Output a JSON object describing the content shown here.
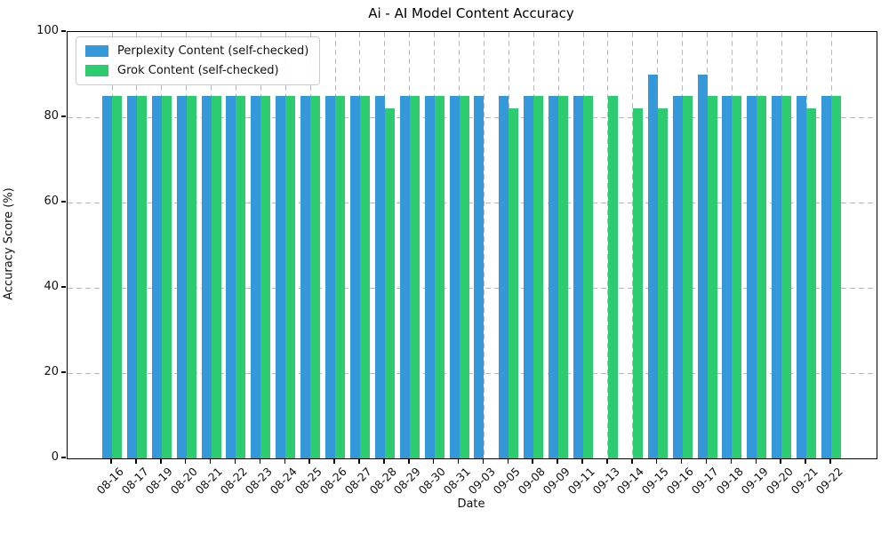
{
  "chart_data": {
    "type": "bar",
    "title": "Ai - AI Model Content Accuracy",
    "xlabel": "Date",
    "ylabel": "Accuracy Score (%)",
    "ylim": [
      0,
      100
    ],
    "yticks": [
      0,
      20,
      40,
      60,
      80,
      100
    ],
    "grid": true,
    "grid_style": "dashed",
    "legend_position": "upper-left",
    "categories": [
      "08-16",
      "08-17",
      "08-19",
      "08-20",
      "08-21",
      "08-22",
      "08-23",
      "08-24",
      "08-25",
      "08-26",
      "08-27",
      "08-28",
      "08-29",
      "08-30",
      "08-31",
      "09-03",
      "09-05",
      "09-08",
      "09-09",
      "09-11",
      "09-13",
      "09-14",
      "09-15",
      "09-16",
      "09-17",
      "09-18",
      "09-19",
      "09-20",
      "09-21",
      "09-22"
    ],
    "series": [
      {
        "name": "Perplexity Content (self-checked)",
        "color": "#3498db",
        "values": [
          85,
          85,
          85,
          85,
          85,
          85,
          85,
          85,
          85,
          85,
          85,
          85,
          85,
          85,
          85,
          85,
          85,
          85,
          85,
          85,
          null,
          null,
          90,
          85,
          90,
          85,
          85,
          85,
          85,
          85
        ]
      },
      {
        "name": "Grok Content (self-checked)",
        "color": "#2ecc71",
        "values": [
          85,
          85,
          85,
          85,
          85,
          85,
          85,
          85,
          85,
          85,
          85,
          82,
          85,
          85,
          85,
          null,
          82,
          85,
          85,
          85,
          85,
          82,
          82,
          85,
          85,
          85,
          85,
          85,
          82,
          85
        ]
      }
    ]
  }
}
